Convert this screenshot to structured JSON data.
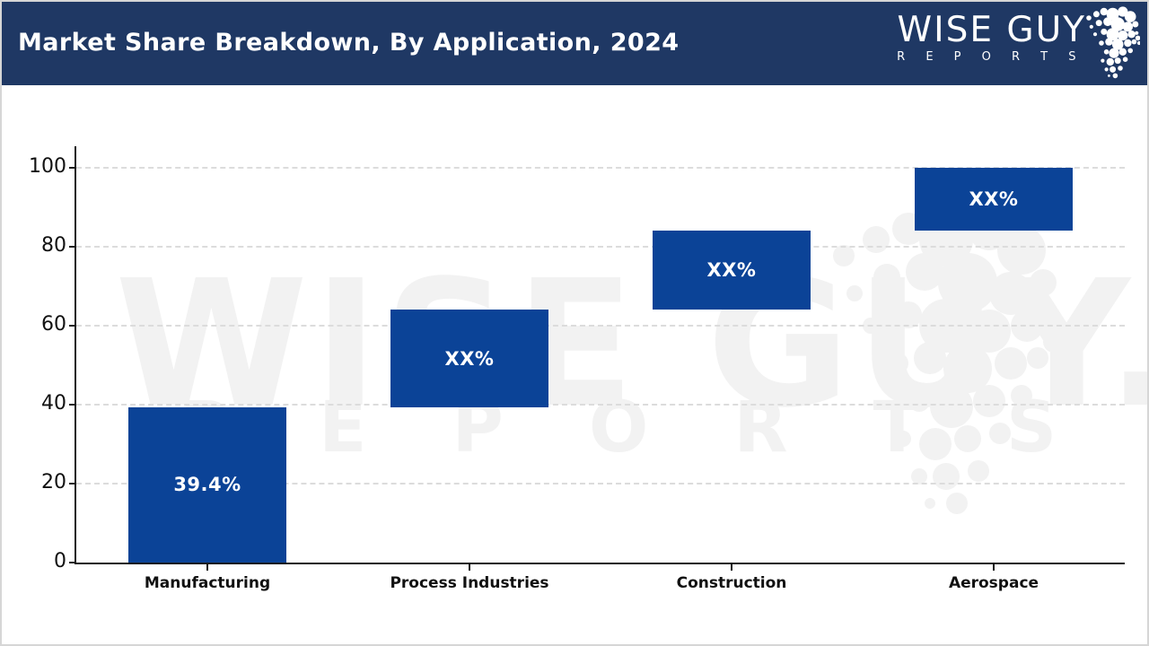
{
  "header": {
    "title": "Market Share Breakdown, By Application, 2024",
    "logo": {
      "line1": "WISE GUY",
      "line2": "R E P O R T S"
    }
  },
  "watermark": {
    "line1": "WISE GUY.",
    "line2": "R E P O R T S ."
  },
  "colors": {
    "header_bg": "#1f3864",
    "bar_blue": "#0b4397",
    "grid": "#dcdcdc",
    "axis": "#1a1a1a",
    "tick_label": "#111111",
    "value_label": "#ffffff",
    "watermark_gray": "#f2f2f2",
    "frame_border": "#d6d6d6"
  },
  "chart_data": {
    "type": "bar",
    "subtype": "floating-segment (waterfall of cumulative market share %)",
    "title": "Market Share Breakdown, By Application, 2024",
    "categories": [
      "Manufacturing",
      "Process Industries",
      "Construction",
      "Aerospace"
    ],
    "bars": [
      {
        "category": "Manufacturing",
        "start": 0,
        "end": 39.4,
        "value_label": "39.4%"
      },
      {
        "category": "Process Industries",
        "start": 39.4,
        "end": 64,
        "value_label": "XX%"
      },
      {
        "category": "Construction",
        "start": 64,
        "end": 84,
        "value_label": "XX%"
      },
      {
        "category": "Aerospace",
        "start": 84,
        "end": 100,
        "value_label": "XX%"
      }
    ],
    "xlabel": "",
    "ylabel": "",
    "yticks": [
      0,
      20,
      40,
      60,
      80,
      100
    ],
    "ylim": [
      0,
      105
    ],
    "grid": "horizontal dashed",
    "legend": "none"
  }
}
